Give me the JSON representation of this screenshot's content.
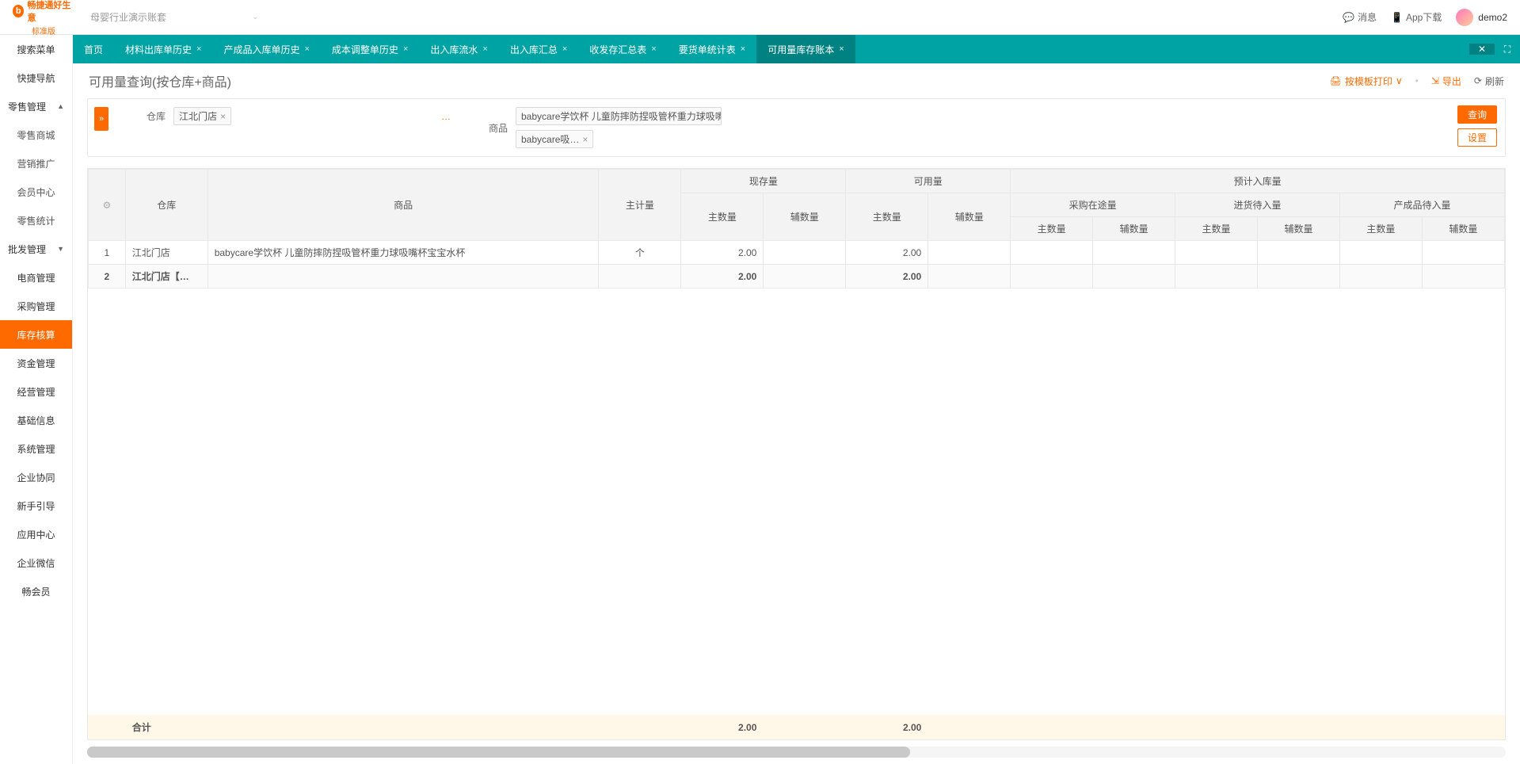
{
  "topbar": {
    "logo_text": "畅捷通好生意",
    "logo_sub": "标准版",
    "account_selector": "母婴行业演示账套",
    "messages": "消息",
    "app_download": "App下载",
    "username": "demo2"
  },
  "sidebar": {
    "items": [
      {
        "label": "搜索菜单",
        "type": "item"
      },
      {
        "label": "快捷导航",
        "type": "item"
      },
      {
        "label": "零售管理",
        "type": "section",
        "caret": "▲"
      },
      {
        "label": "零售商城",
        "type": "sub"
      },
      {
        "label": "营销推广",
        "type": "sub"
      },
      {
        "label": "会员中心",
        "type": "sub"
      },
      {
        "label": "零售统计",
        "type": "sub"
      },
      {
        "label": "批发管理",
        "type": "section",
        "caret": "▼"
      },
      {
        "label": "电商管理",
        "type": "item"
      },
      {
        "label": "采购管理",
        "type": "item"
      },
      {
        "label": "库存核算",
        "type": "item",
        "active": true
      },
      {
        "label": "资金管理",
        "type": "item"
      },
      {
        "label": "经营管理",
        "type": "item"
      },
      {
        "label": "基础信息",
        "type": "item"
      },
      {
        "label": "系统管理",
        "type": "item"
      },
      {
        "label": "企业协同",
        "type": "item"
      },
      {
        "label": "新手引导",
        "type": "item"
      },
      {
        "label": "应用中心",
        "type": "item"
      },
      {
        "label": "企业微信",
        "type": "item"
      },
      {
        "label": "畅会员",
        "type": "item"
      }
    ]
  },
  "tabs": [
    {
      "label": "首页",
      "closable": false
    },
    {
      "label": "材料出库单历史",
      "closable": true
    },
    {
      "label": "产成品入库单历史",
      "closable": true
    },
    {
      "label": "成本调整单历史",
      "closable": true
    },
    {
      "label": "出入库流水",
      "closable": true
    },
    {
      "label": "出入库汇总",
      "closable": true
    },
    {
      "label": "收发存汇总表",
      "closable": true
    },
    {
      "label": "要货单统计表",
      "closable": true
    },
    {
      "label": "可用量库存账本",
      "closable": true,
      "active": true
    }
  ],
  "tabs_close_all_title": "关闭全部",
  "tabs_fullscreen_title": "全屏",
  "page": {
    "title": "可用量查询(按仓库+商品)",
    "actions": {
      "print": "按模板打印",
      "print_caret": "∨",
      "export": "导出",
      "refresh": "刷新"
    }
  },
  "filter": {
    "expand_toggle": "»",
    "warehouse_label": "仓库",
    "warehouse_chips": [
      {
        "text": "江北门店"
      }
    ],
    "warehouse_more": "…",
    "product_label": "商品",
    "product_chips": [
      {
        "text": "babycare学饮杯 儿童防摔防捏吸管杯重力球吸嘴杯宝宝水杯"
      },
      {
        "text": "babycare吸…"
      }
    ],
    "product_more": "…",
    "query_btn": "查询",
    "settings_btn": "设置"
  },
  "table": {
    "gear": "⚙",
    "headers": {
      "warehouse": "仓库",
      "product": "商品",
      "main_unit": "主计量",
      "current_stock": "现存量",
      "available": "可用量",
      "expected_in": "预计入库量",
      "purchase_transit": "采购在途量",
      "incoming_pending": "进货待入量",
      "finished_pending": "产成品待入量",
      "main_qty": "主数量",
      "aux_qty": "辅数量"
    },
    "rows": [
      {
        "idx": "1",
        "warehouse": "江北门店",
        "product": "babycare学饮杯 儿童防摔防捏吸管杯重力球吸嘴杯宝宝水杯",
        "unit": "个",
        "cur_main": "2.00",
        "cur_aux": "",
        "avail_main": "2.00",
        "avail_aux": "",
        "pt_main": "",
        "pt_aux": "",
        "ip_main": "",
        "ip_aux": "",
        "fp_main": "",
        "fp_aux": ""
      }
    ],
    "subtotal": {
      "idx": "2",
      "warehouse": "江北门店【…",
      "cur_main": "2.00",
      "avail_main": "2.00"
    },
    "footer": {
      "label": "合计",
      "cur_main": "2.00",
      "avail_main": "2.00"
    }
  }
}
